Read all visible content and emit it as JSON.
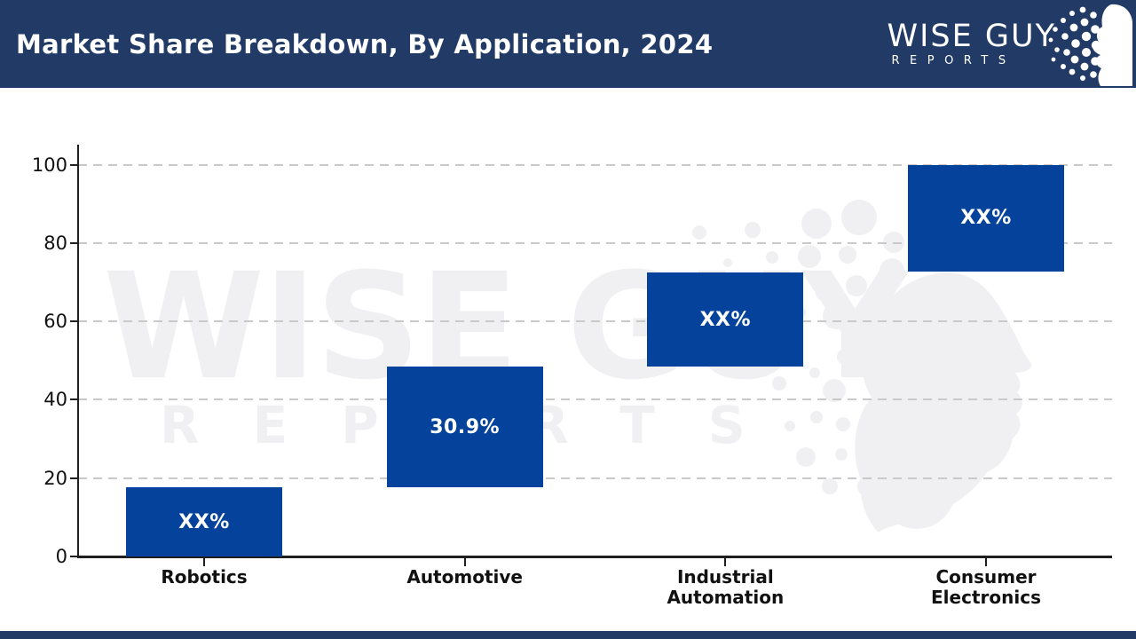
{
  "header": {
    "title": "Market Share Breakdown, By Application, 2024",
    "logo": {
      "name": "WISE GUY",
      "subtitle": "REPORTS"
    }
  },
  "watermark": {
    "line1": "WISE GUY",
    "line2": "REPORTS"
  },
  "colors": {
    "header_bg": "#213a66",
    "bar": "#04429b",
    "bar_label": "#ffffff",
    "grid": "#c9c9c9",
    "axis": "#1f1f1f",
    "tick_label": "#111111",
    "watermark": "#f0f0f2"
  },
  "chart_data": {
    "type": "bar",
    "subtype": "waterfall",
    "title": "Market Share Breakdown, By Application, 2024",
    "xlabel": "",
    "ylabel": "",
    "ylim": [
      0,
      105
    ],
    "yticks": [
      0,
      20,
      40,
      60,
      80,
      100
    ],
    "grid": "horizontal dashed",
    "legend": "none",
    "categories": [
      "Robotics",
      "Automotive",
      "Industrial\nAutomation",
      "Consumer\nElectronics"
    ],
    "bars": [
      {
        "category": "Robotics",
        "label": "XX%",
        "start": 0,
        "end": 17.6
      },
      {
        "category": "Automotive",
        "label": "30.9%",
        "start": 17.6,
        "end": 48.5
      },
      {
        "category": "Industrial\nAutomation",
        "label": "XX%",
        "start": 48.5,
        "end": 72.4
      },
      {
        "category": "Consumer\nElectronics",
        "label": "XX%",
        "start": 72.7,
        "end": 100
      }
    ]
  }
}
